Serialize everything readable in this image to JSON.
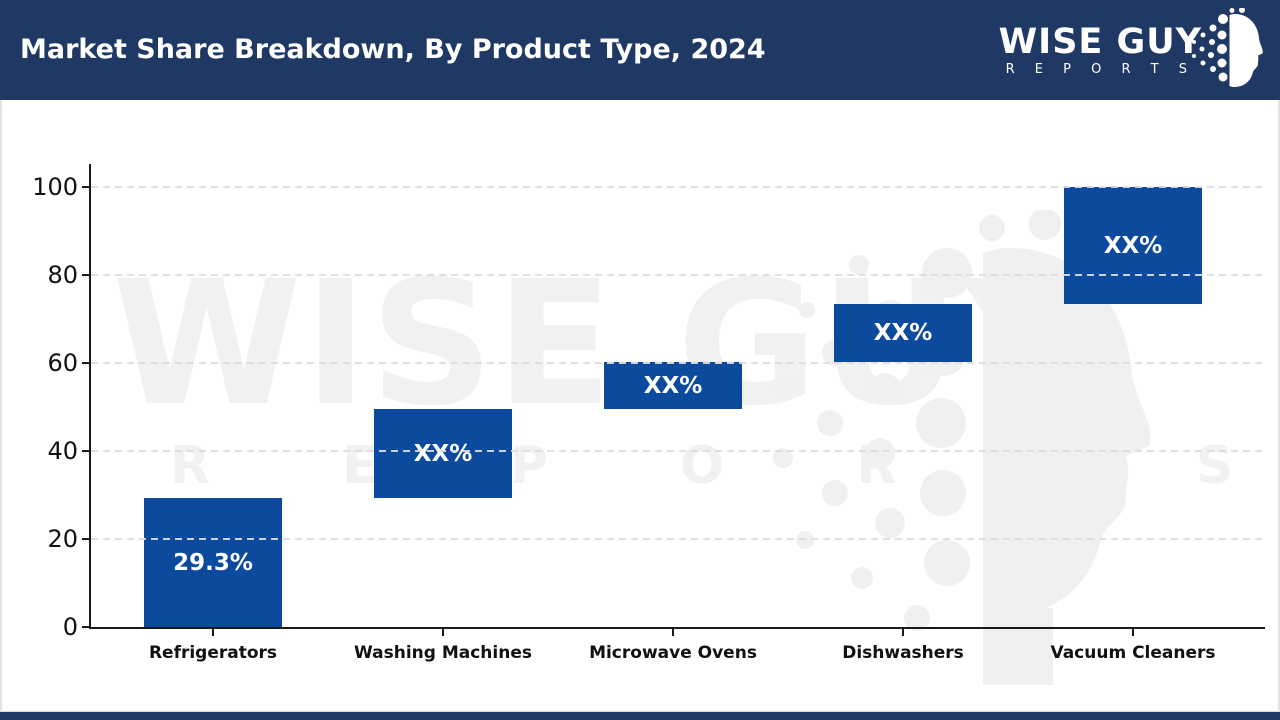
{
  "header": {
    "title": "Market Share Breakdown, By Product Type, 2024",
    "logo": {
      "line1": "WISE GUY",
      "line2": "R E P O R T S"
    }
  },
  "watermark": {
    "line1": "WISE GUY",
    "line2": "R E P O R T S"
  },
  "colors": {
    "header_bg": "#1f3864",
    "footer_bg": "#1f3864",
    "bar": "#0c4a9e",
    "grid": "#dddddd",
    "axis": "#1a1a1a",
    "watermark": "#f1f1f1",
    "bar_label_text": "#ffffff"
  },
  "chart_data": {
    "type": "bar",
    "subtype": "waterfall",
    "title": "Market Share Breakdown, By Product Type, 2024",
    "categories": [
      "Refrigerators",
      "Washing Machines",
      "Microwave Ovens",
      "Dishwashers",
      "Vacuum Cleaners"
    ],
    "bars": [
      {
        "category": "Refrigerators",
        "start": 0,
        "end": 29.3,
        "label": "29.3%"
      },
      {
        "category": "Washing Machines",
        "start": 29.3,
        "end": 49.5,
        "label": "XX%"
      },
      {
        "category": "Microwave Ovens",
        "start": 49.5,
        "end": 60.2,
        "label": "XX%"
      },
      {
        "category": "Dishwashers",
        "start": 60.2,
        "end": 73.4,
        "label": "XX%"
      },
      {
        "category": "Vacuum Cleaners",
        "start": 73.4,
        "end": 100,
        "label": "XX%"
      }
    ],
    "yticks": [
      0,
      20,
      40,
      60,
      80,
      100
    ],
    "ylim": [
      0,
      105
    ],
    "xlabel": "",
    "ylabel": "",
    "grid": "dashed-horizontal",
    "legend": "none"
  }
}
